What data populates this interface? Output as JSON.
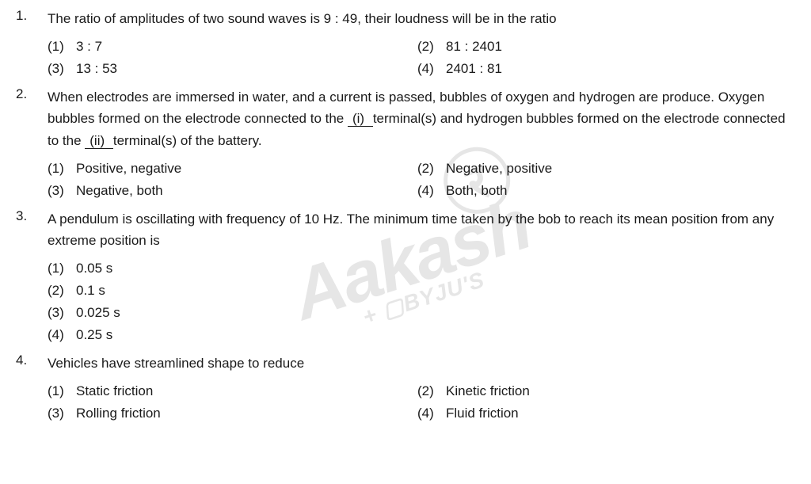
{
  "questions": [
    {
      "num": "1.",
      "text": "The ratio of amplitudes of two sound waves is 9 : 49, their loudness will be in the ratio",
      "layout": "2col",
      "options": [
        {
          "n": "(1)",
          "t": "3 : 7"
        },
        {
          "n": "(2)",
          "t": "81 : 2401"
        },
        {
          "n": "(3)",
          "t": "13 : 53"
        },
        {
          "n": "(4)",
          "t": "2401 : 81"
        }
      ]
    },
    {
      "num": "2.",
      "text_parts": {
        "a": "When electrodes are immersed in water, and a current is passed, bubbles of oxygen and hydrogen are produce. Oxygen bubbles formed on the electrode connected to the ",
        "u1": "   (i)   ",
        "b": " terminal(s) and hydrogen bubbles formed on the electrode connected to the ",
        "u2": "   (ii)   ",
        "c": " terminal(s) of the battery."
      },
      "layout": "2col",
      "options": [
        {
          "n": "(1)",
          "t": "Positive, negative"
        },
        {
          "n": "(2)",
          "t": "Negative, positive"
        },
        {
          "n": "(3)",
          "t": "Negative, both"
        },
        {
          "n": "(4)",
          "t": "Both, both"
        }
      ]
    },
    {
      "num": "3.",
      "text": "A pendulum is oscillating with frequency of 10 Hz. The minimum time taken by the bob to reach its mean position from any extreme position is",
      "layout": "1col",
      "options": [
        {
          "n": "(1)",
          "t": "0.05 s"
        },
        {
          "n": "(2)",
          "t": "0.1 s"
        },
        {
          "n": "(3)",
          "t": "0.025 s"
        },
        {
          "n": "(4)",
          "t": "0.25 s"
        }
      ]
    },
    {
      "num": "4.",
      "text": "Vehicles have streamlined shape to reduce",
      "layout": "2col",
      "options": [
        {
          "n": "(1)",
          "t": "Static friction"
        },
        {
          "n": "(2)",
          "t": "Kinetic friction"
        },
        {
          "n": "(3)",
          "t": "Rolling friction"
        },
        {
          "n": "(4)",
          "t": "Fluid friction"
        }
      ]
    }
  ],
  "watermark": {
    "glyph": "र",
    "main": "Aakash",
    "sub": "+ ▢BYJU'S"
  }
}
